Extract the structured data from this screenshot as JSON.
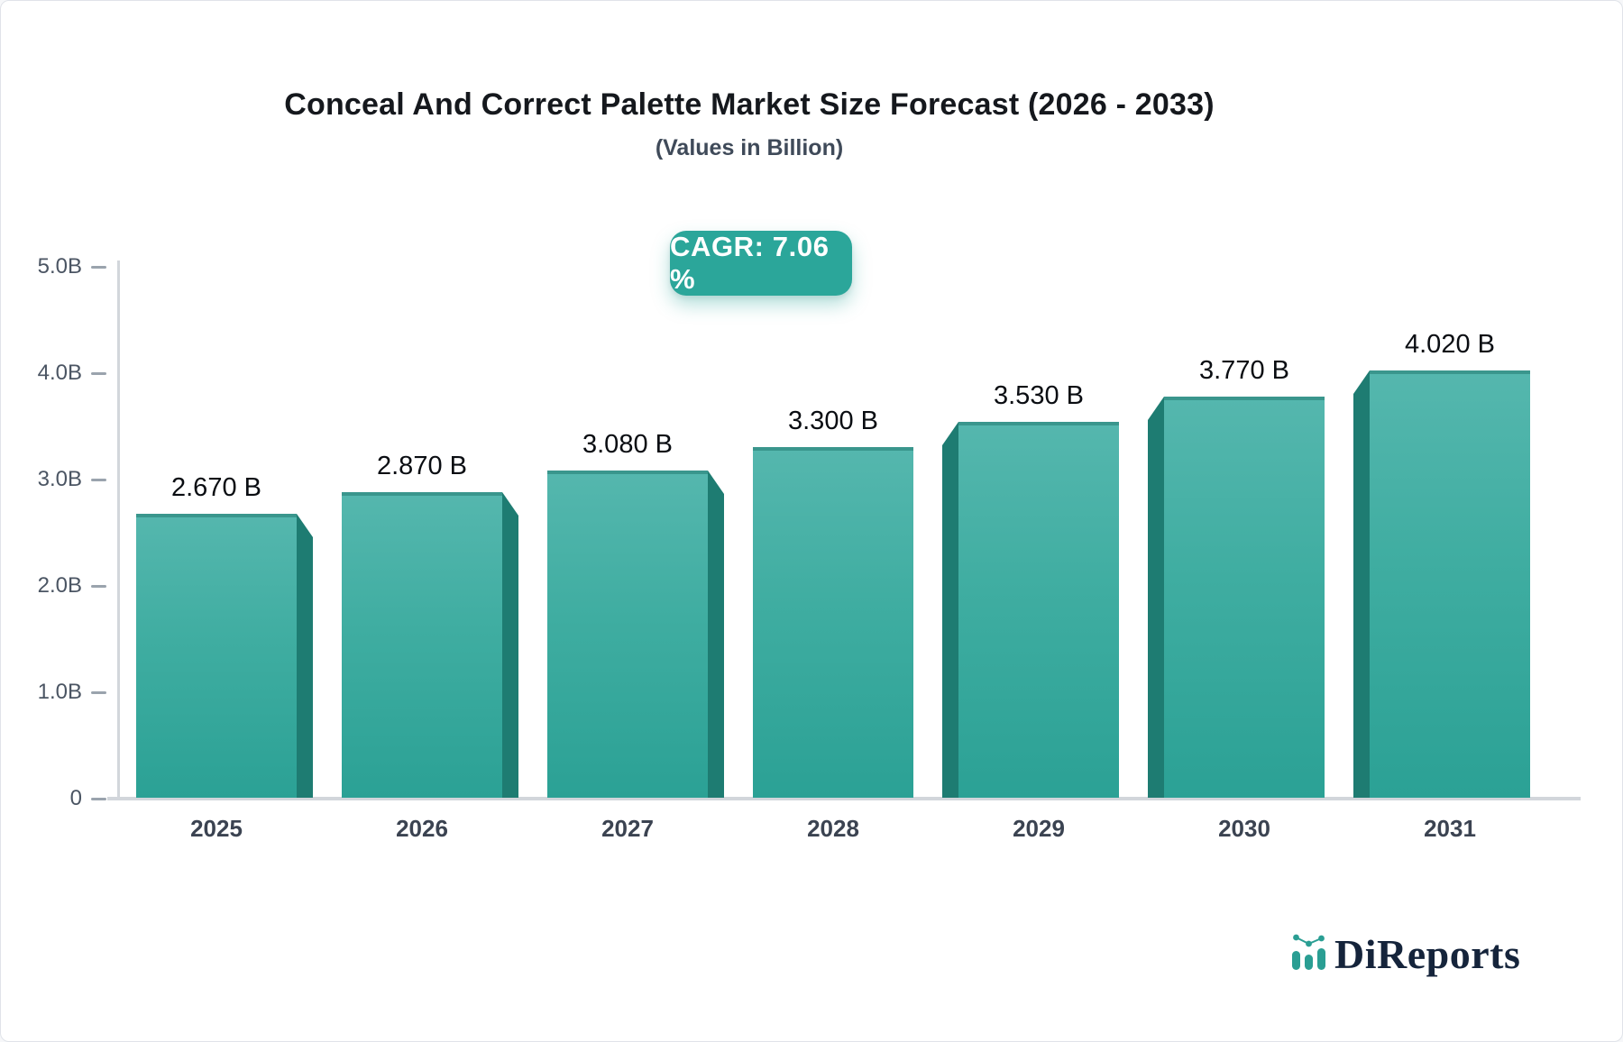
{
  "header": {
    "title": "Conceal And Correct Palette Market Size Forecast (2026 - 2033)",
    "subtitle": "(Values in Billion)",
    "cagr_label": "CAGR: 7.06 %"
  },
  "chart_data": {
    "type": "bar",
    "title": "Conceal And Correct Palette Market Size Forecast (2026 - 2033)",
    "subtitle": "(Values in Billion)",
    "cagr": "7.06 %",
    "categories": [
      "2025",
      "2026",
      "2027",
      "2028",
      "2029",
      "2030",
      "2031"
    ],
    "values": [
      2.67,
      2.87,
      3.08,
      3.3,
      3.53,
      3.77,
      4.02
    ],
    "value_labels": [
      "2.670 B",
      "2.870 B",
      "3.080 B",
      "3.300 B",
      "3.530 B",
      "3.770 B",
      "4.020 B"
    ],
    "unit": "Billion",
    "ylim": [
      0,
      5
    ],
    "ytick_labels": [
      "0",
      "1.0B",
      "2.0B",
      "3.0B",
      "4.0B",
      "5.0B"
    ],
    "grid": "off",
    "legend": "none",
    "bar_style": "3d",
    "colors": {
      "bar_face_top": "#55b7ae",
      "bar_face_bottom": "#2ba195",
      "bar_side": "#1e7c72",
      "badge_background": "#2ba69a",
      "axis_line": "#d2d6db",
      "tick": "#9aa3ad",
      "value_label": "#0a0d12",
      "category_label": "#3b4351"
    }
  },
  "footer": {
    "brand": "DiReports",
    "brand_color": "#15243b",
    "brand_icon_color": "#2a9e93"
  }
}
